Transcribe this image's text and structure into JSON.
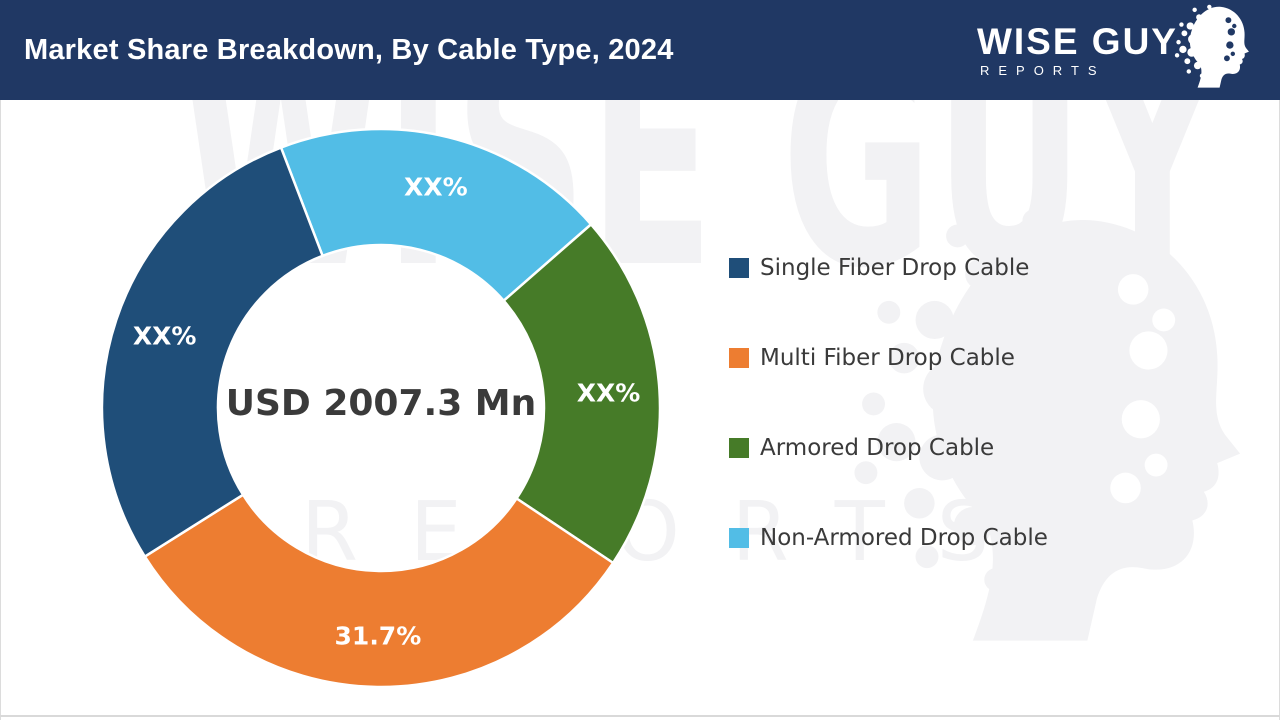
{
  "header": {
    "title": "Market Share Breakdown, By Cable Type, 2024",
    "bg_color": "#203864",
    "logo": {
      "line1": "WISE GUY",
      "line2": "REPORTS"
    }
  },
  "watermark": {
    "line1": "WISE GUY",
    "line2": "REPORTS"
  },
  "chart_data": {
    "type": "donut",
    "title": "Market Share Breakdown, By Cable Type, 2024",
    "center_label": "USD 2007.3 Mn",
    "start_angle_deg": -21,
    "direction": "clockwise",
    "inner_radius_px": 163,
    "outer_radius_px": 279,
    "segments": [
      {
        "name": "Non-Armored Drop Cable",
        "value_pct": 19.4,
        "display_label": "XX%",
        "color": "#52BDE6"
      },
      {
        "name": "Armored Drop Cable",
        "value_pct": 20.8,
        "display_label": "XX%",
        "color": "#467B28"
      },
      {
        "name": "Multi Fiber Drop Cable",
        "value_pct": 31.7,
        "display_label": "31.7%",
        "color": "#ED7D31"
      },
      {
        "name": "Single Fiber Drop Cable",
        "value_pct": 28.1,
        "display_label": "XX%",
        "color": "#1F4E79"
      }
    ],
    "legend": [
      {
        "label": "Single Fiber Drop Cable",
        "color": "#1F4E79"
      },
      {
        "label": "Multi Fiber Drop Cable",
        "color": "#ED7D31"
      },
      {
        "label": "Armored Drop Cable",
        "color": "#467B28"
      },
      {
        "label": "Non-Armored Drop Cable",
        "color": "#52BDE6"
      }
    ],
    "legend_position": "right"
  },
  "colors": {
    "header_bg": "#203864",
    "center_text": "#3a3a3a",
    "legend_text": "#3a3a3a",
    "watermark": "#f2f2f4",
    "divider": "#d9d9d9"
  }
}
